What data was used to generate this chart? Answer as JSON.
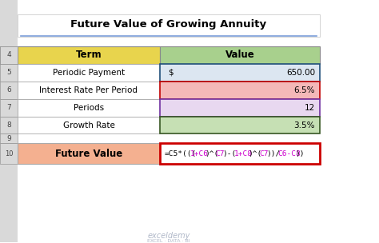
{
  "title": "Future Value of Growing Annuity",
  "col_headers": [
    "Term",
    "Value"
  ],
  "rows": [
    {
      "term": "Periodic Payment",
      "value": "$     650.00",
      "value_raw": "$     650.00"
    },
    {
      "term": "Interest Rate Per Period",
      "value": "6.5%"
    },
    {
      "term": "Periods",
      "value": "12"
    },
    {
      "term": "Growth Rate",
      "value": "3.5%"
    }
  ],
  "formula_label": "Future Value",
  "formula": "=C5*(((1+C6)^(C7)-(1+C8)^(C7))/(C6-C8))",
  "col_header_term_bg": "#e8d44d",
  "col_header_value_bg": "#a8d08d",
  "row5_value_bg": "#dce6f1",
  "row6_value_bg": "#f4b8b8",
  "row7_value_bg": "#e8d8f0",
  "row8_value_bg": "#c6e0b4",
  "formula_label_bg": "#f4b090",
  "formula_bg": "#ffffff",
  "header_row_bg": "#f2f2f2",
  "col_A_bg": "#d9d9d9",
  "col_header_C_bg": "#b8cce4",
  "title_bg": "#f2f2f2",
  "watermark": "exceldemy",
  "watermark_color": "#b0b8c8"
}
